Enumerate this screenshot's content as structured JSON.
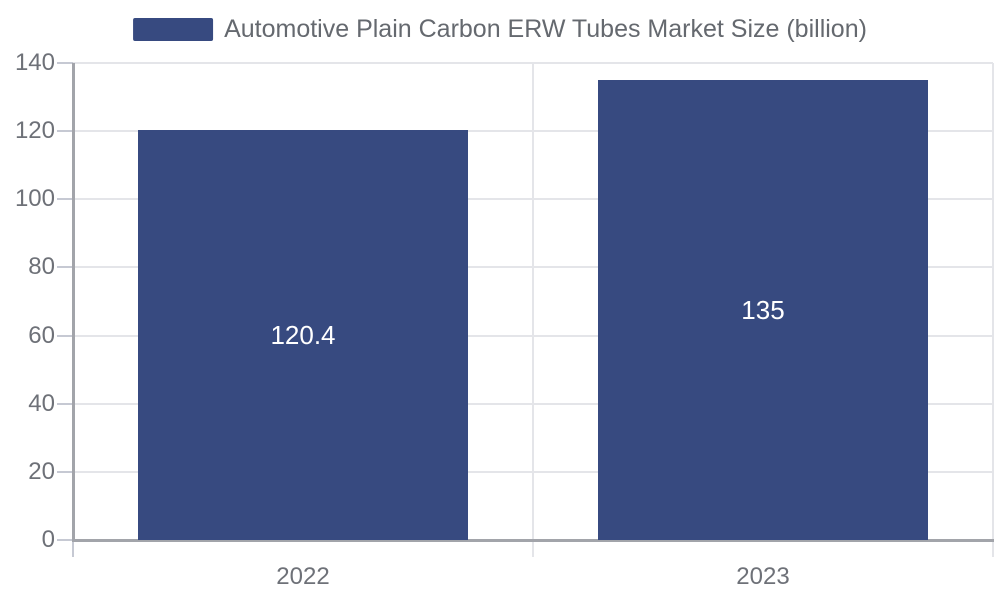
{
  "legend": {
    "label": "Automotive Plain Carbon ERW Tubes Market Size (billion)"
  },
  "chart_data": {
    "type": "bar",
    "title": "",
    "xlabel": "",
    "ylabel": "",
    "categories": [
      "2022",
      "2023"
    ],
    "series": [
      {
        "name": "Automotive Plain Carbon ERW Tubes Market Size (billion)",
        "values": [
          120.4,
          135
        ]
      }
    ],
    "data_labels": [
      "120.4",
      "135"
    ],
    "ylim": [
      0,
      140
    ],
    "yticks": [
      0,
      20,
      40,
      60,
      80,
      100,
      120,
      140
    ],
    "grid": true,
    "legend_position": "top-center",
    "colors": {
      "bar": "#374a80",
      "grid_line": "#e4e5e9",
      "axis_line": "#a2a4aa",
      "tick": "#c6c9d3",
      "axis_label": "#6e7178",
      "legend_text": "#65696f",
      "data_label": "#ffffff",
      "background": "#ffffff"
    }
  }
}
